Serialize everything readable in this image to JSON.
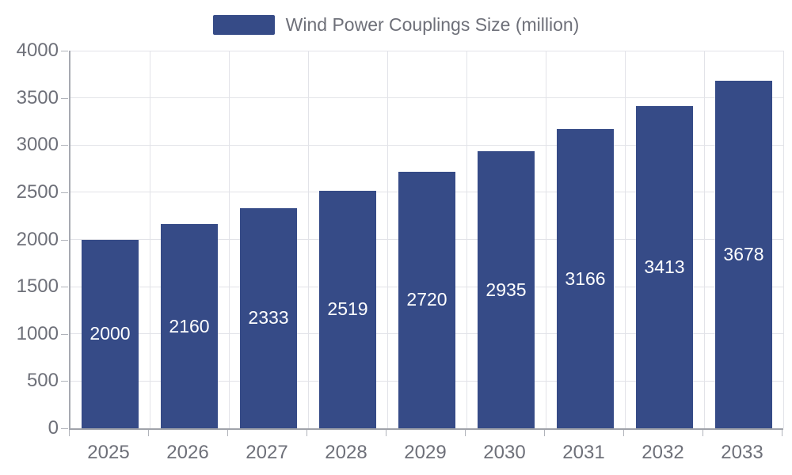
{
  "chart_data": {
    "type": "bar",
    "title": "Wind Power Couplings Size (million)",
    "categories": [
      "2025",
      "2026",
      "2027",
      "2028",
      "2029",
      "2030",
      "2031",
      "2032",
      "2033"
    ],
    "values": [
      2000,
      2160,
      2333,
      2519,
      2720,
      2935,
      3166,
      3413,
      3678
    ],
    "xlabel": "",
    "ylabel": "",
    "ylim": [
      0,
      4000
    ],
    "yticks": [
      0,
      500,
      1000,
      1500,
      2000,
      2500,
      3000,
      3500,
      4000
    ],
    "grid": "on",
    "legend_position": "top",
    "value_labels": "inside-center",
    "colors": {
      "bar": "#364b87",
      "bar_value_text": "#ffffff",
      "axis_text": "#6e7079",
      "legend_text": "#6e7079",
      "gridline": "#e2e3e8",
      "axis_line": "#a0a3aa"
    }
  }
}
